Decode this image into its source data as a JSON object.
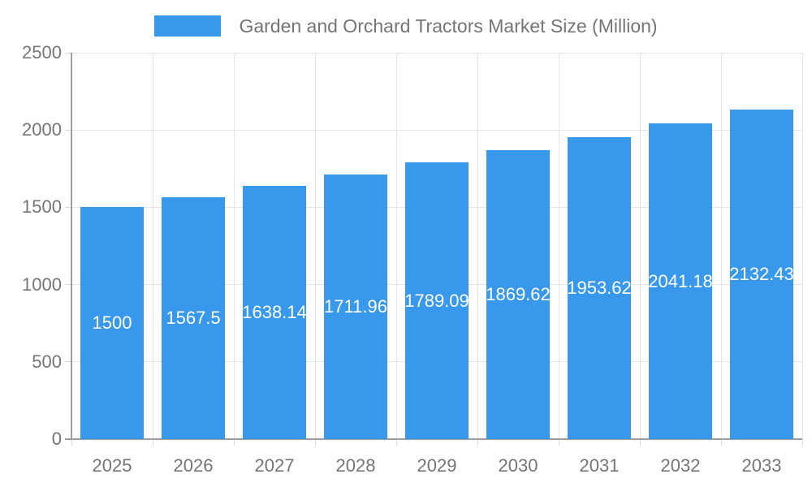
{
  "legend": {
    "label": "Garden and Orchard Tractors Market Size (Million)"
  },
  "chart_data": {
    "type": "bar",
    "title": "Garden and Orchard Tractors Market Size (Million)",
    "xlabel": "",
    "ylabel": "",
    "categories": [
      "2025",
      "2026",
      "2027",
      "2028",
      "2029",
      "2030",
      "2031",
      "2032",
      "2033"
    ],
    "values": [
      1500,
      1567.5,
      1638.14,
      1711.96,
      1789.09,
      1869.62,
      1953.62,
      2041.18,
      2132.43
    ],
    "value_labels": [
      "1500",
      "1567.5",
      "1638.14",
      "1711.96",
      "1789.09",
      "1869.62",
      "1953.62",
      "2041.18",
      "2132.43"
    ],
    "y_ticks": [
      0,
      500,
      1000,
      1500,
      2000,
      2500
    ],
    "ylim": [
      0,
      2500
    ],
    "grid": true,
    "legend_position": "top",
    "bar_color": "#3899ec"
  },
  "colors": {
    "bar": "#3899ec",
    "gridline": "#e6e6e6",
    "axis": "#9e9e9e",
    "tick": "#dcdcdc",
    "text": "#757575",
    "bar_label_text": "#ffffff",
    "background": "#ffffff"
  }
}
